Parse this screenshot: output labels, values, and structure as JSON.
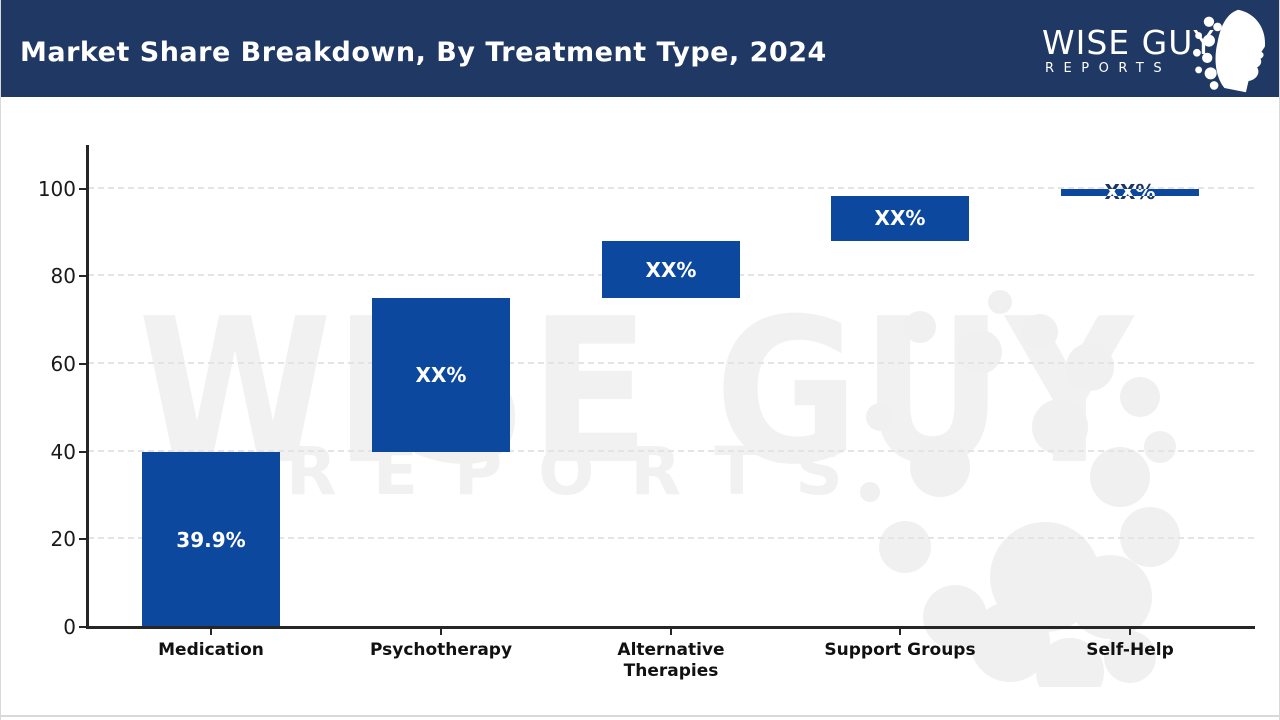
{
  "header": {
    "title": "Market Share Breakdown, By Treatment Type, 2024",
    "logo_line1": "WISE GUY",
    "logo_line2": "REPORTS"
  },
  "watermark": {
    "line1": "WISE GUY",
    "line2": "REPORTS"
  },
  "chart_data": {
    "type": "bar",
    "subtype": "waterfall-stacked-percentage",
    "title": "Market Share Breakdown, By Treatment Type, 2024",
    "categories": [
      "Medication",
      "Psychotherapy",
      "Alternative\nTherapies",
      "Support Groups",
      "Self-Help"
    ],
    "segments": [
      {
        "name": "Medication",
        "start": 0,
        "end": 39.9,
        "label": "39.9%"
      },
      {
        "name": "Psychotherapy",
        "start": 39.9,
        "end": 75.0,
        "label": "XX%"
      },
      {
        "name": "Alternative Therapies",
        "start": 75.0,
        "end": 88.0,
        "label": "XX%"
      },
      {
        "name": "Support Groups",
        "start": 88.0,
        "end": 98.4,
        "label": "XX%"
      },
      {
        "name": "Self-Help",
        "start": 98.4,
        "end": 100,
        "label": "XX%"
      }
    ],
    "ylabel": "",
    "xlabel": "",
    "ylim": [
      0,
      100
    ],
    "yticks": [
      0,
      20,
      40,
      60,
      80,
      100
    ],
    "grid": "horizontal-dashed",
    "legend": "none",
    "bar_color": "#0d489f",
    "label_color_inside": "#ffffff",
    "label_color_outside": "#1c355f",
    "header_bg_color": "#203864",
    "axis_color": "#262626"
  }
}
